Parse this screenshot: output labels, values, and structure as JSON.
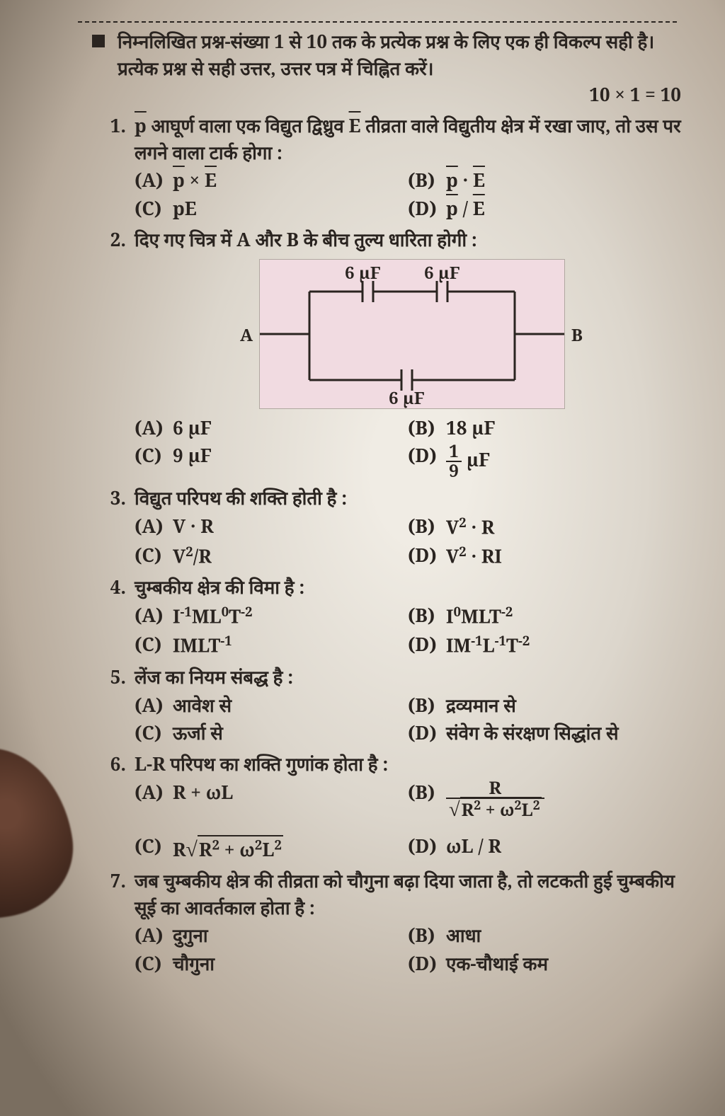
{
  "page": {
    "background_gradient": [
      "#f0ece4",
      "#dcd6cc",
      "#b8ab9c",
      "#7a6e60"
    ],
    "text_color": "#2a2420",
    "circuit_bg": "#f1dbe1",
    "font_family": "serif",
    "base_fontsize_pt": 20
  },
  "instructions": {
    "text": "निम्नलिखित प्रश्न-संख्या 1 से 10 तक के प्रत्येक प्रश्न के लिए एक ही विकल्प सही है। प्रत्येक प्रश्न से सही उत्तर, उत्तर पत्र में चिह्नित करें।",
    "marks": "10 × 1 = 10"
  },
  "questions": [
    {
      "num": "1.",
      "text_parts": [
        "",
        "p",
        " आघूर्ण वाला एक विद्युत द्विध्रुव ",
        "E",
        " तीव्रता वाले विद्युतीय क्षेत्र में रखा जाए, तो उस पर लगने वाला टार्क होगा :"
      ],
      "options": [
        {
          "label": "(A)",
          "html": "<span class=\"vec\">p</span> × <span class=\"vec\">E</span>"
        },
        {
          "label": "(B)",
          "html": "<span class=\"vec\">p</span> · <span class=\"vec\">E</span>"
        },
        {
          "label": "(C)",
          "html": "pE"
        },
        {
          "label": "(D)",
          "html": "<span class=\"vec\">p</span> / <span class=\"vec\">E</span>"
        }
      ]
    },
    {
      "num": "2.",
      "text": "दिए गए चित्र में A और B के बीच तुल्य धारिता होगी :",
      "circuit": {
        "node_left": "A",
        "node_right": "B",
        "cap_top1": "6 µF",
        "cap_top2": "6 µF",
        "cap_bottom": "6 µF",
        "stroke_color": "#2a2420",
        "stroke_width": 3
      },
      "options": [
        {
          "label": "(A)",
          "html": "6 µF"
        },
        {
          "label": "(B)",
          "html": "18 µF"
        },
        {
          "label": "(C)",
          "html": "9 µF"
        },
        {
          "label": "(D)",
          "html": "<span class=\"frac\"><span>1</span><span>9</span></span> µF"
        }
      ]
    },
    {
      "num": "3.",
      "text": "विद्युत परिपथ की शक्ति होती है :",
      "options": [
        {
          "label": "(A)",
          "html": "V · R"
        },
        {
          "label": "(B)",
          "html": "V<sup>2</sup> · R"
        },
        {
          "label": "(C)",
          "html": "V<sup>2</sup>/R"
        },
        {
          "label": "(D)",
          "html": "V<sup>2</sup> · RI"
        }
      ]
    },
    {
      "num": "4.",
      "text": "चुम्बकीय क्षेत्र की विमा है :",
      "options": [
        {
          "label": "(A)",
          "html": "I<sup>-1</sup>ML<sup>0</sup>T<sup>-2</sup>"
        },
        {
          "label": "(B)",
          "html": "I<sup>0</sup>MLT<sup>-2</sup>"
        },
        {
          "label": "(C)",
          "html": "IMLT<sup>-1</sup>"
        },
        {
          "label": "(D)",
          "html": "IM<sup>-1</sup>L<sup>-1</sup>T<sup>-2</sup>"
        }
      ]
    },
    {
      "num": "5.",
      "text": "लेंज का नियम संबद्ध है :",
      "options": [
        {
          "label": "(A)",
          "html": "आवेश से"
        },
        {
          "label": "(B)",
          "html": "द्रव्यमान से"
        },
        {
          "label": "(C)",
          "html": "ऊर्जा से"
        },
        {
          "label": "(D)",
          "html": "संवेग के संरक्षण सिद्धांत से"
        }
      ]
    },
    {
      "num": "6.",
      "text": "L-R परिपथ का शक्ति गुणांक होता है :",
      "options": [
        {
          "label": "(A)",
          "html": "R + ωL"
        },
        {
          "label": "(B)",
          "html": "<span class=\"frac\"><span>R</span><span><span class=\"radic\">√</span><span class=\"sqrt\">R<sup>2</sup> + ω<sup>2</sup>L<sup>2</sup></span></span></span>"
        },
        {
          "label": "(C)",
          "html": "R<span class=\"radic\">√</span><span class=\"sqrt\">R<sup>2</sup> + ω<sup>2</sup>L<sup>2</sup></span>"
        },
        {
          "label": "(D)",
          "html": "ωL / R"
        }
      ]
    },
    {
      "num": "7.",
      "text": "जब चुम्बकीय क्षेत्र की तीव्रता को चौगुना बढ़ा दिया जाता है, तो लटकती हुई चुम्बकीय सूई का आवर्तकाल होता है :",
      "options": [
        {
          "label": "(A)",
          "html": "दुगुना"
        },
        {
          "label": "(B)",
          "html": "आधा"
        },
        {
          "label": "(C)",
          "html": "चौगुना"
        },
        {
          "label": "(D)",
          "html": "एक-चौथाई कम"
        }
      ]
    }
  ]
}
